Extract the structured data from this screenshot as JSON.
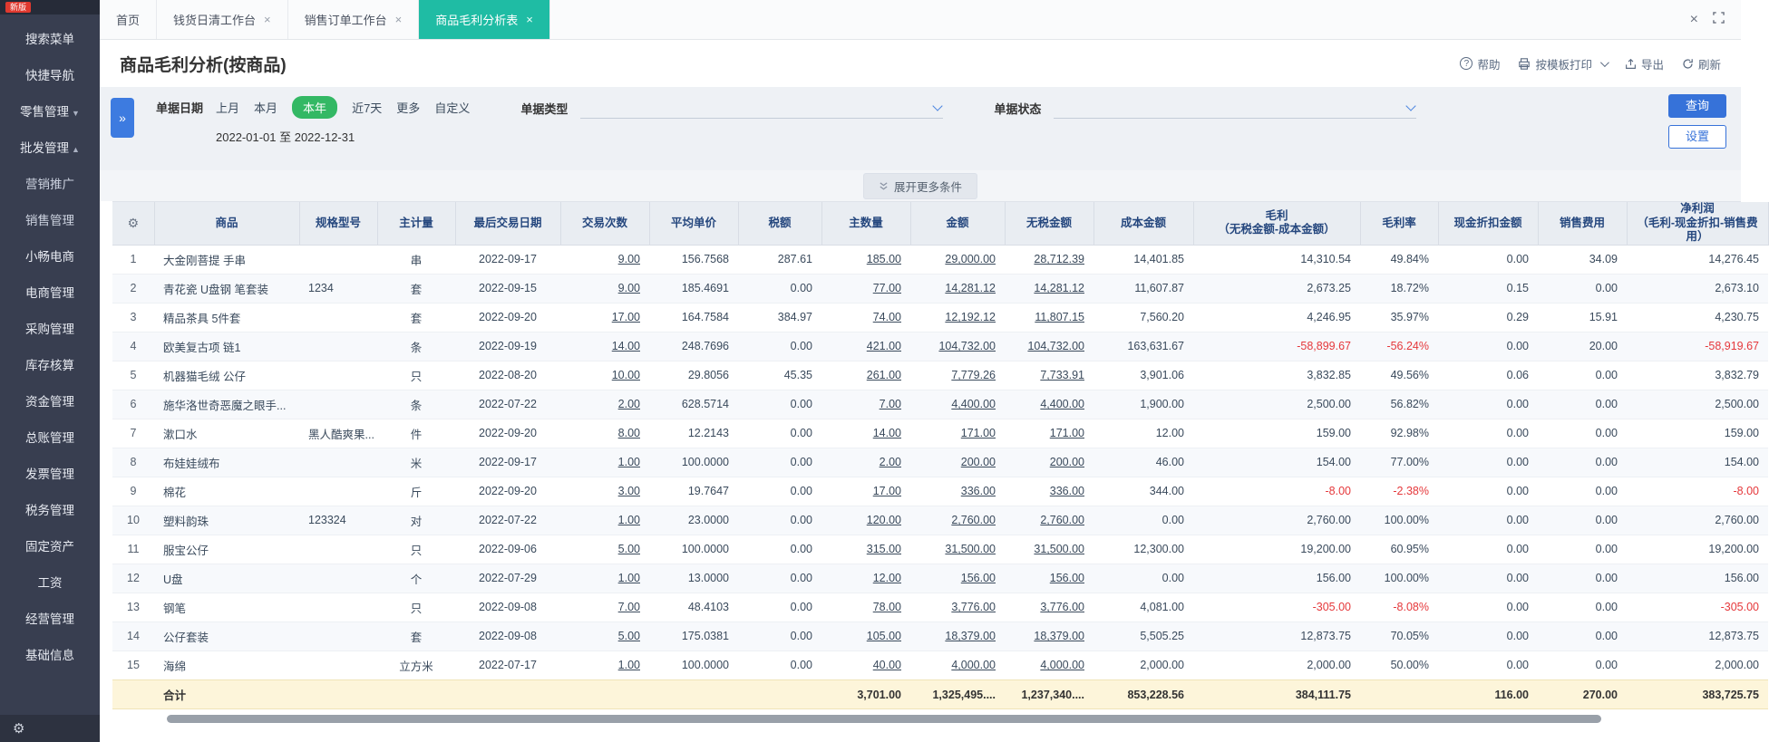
{
  "colors": {
    "sidebar_bg": "#383e50",
    "active_tab": "#1fbca4",
    "primary_blue": "#3672d9",
    "pill_green": "#33b864",
    "negative_red": "#e5383b",
    "total_row_bg": "#fdf5da"
  },
  "sidebar": {
    "logo_badge": "新版",
    "gear_icon": "⚙",
    "items": [
      {
        "label": "搜索菜单",
        "arrow": ""
      },
      {
        "label": "快捷导航",
        "arrow": ""
      },
      {
        "label": "零售管理",
        "arrow": "down"
      },
      {
        "label": "批发管理",
        "arrow": "up"
      },
      {
        "label": "营销推广",
        "arrow": "",
        "sub": true
      },
      {
        "label": "销售管理",
        "arrow": "",
        "sub": true
      },
      {
        "label": "小畅电商",
        "arrow": ""
      },
      {
        "label": "电商管理",
        "arrow": ""
      },
      {
        "label": "采购管理",
        "arrow": ""
      },
      {
        "label": "库存核算",
        "arrow": ""
      },
      {
        "label": "资金管理",
        "arrow": ""
      },
      {
        "label": "总账管理",
        "arrow": ""
      },
      {
        "label": "发票管理",
        "arrow": ""
      },
      {
        "label": "税务管理",
        "arrow": ""
      },
      {
        "label": "固定资产",
        "arrow": ""
      },
      {
        "label": "工资",
        "arrow": ""
      },
      {
        "label": "经营管理",
        "arrow": ""
      },
      {
        "label": "基础信息",
        "arrow": ""
      }
    ]
  },
  "tabs": [
    {
      "label": "首页",
      "closable": false,
      "active": false
    },
    {
      "label": "钱货日清工作台",
      "closable": true,
      "active": false
    },
    {
      "label": "销售订单工作台",
      "closable": true,
      "active": false
    },
    {
      "label": "商品毛利分析表",
      "closable": true,
      "active": true
    }
  ],
  "header": {
    "title": "商品毛利分析(按商品)",
    "actions": {
      "help": "帮助",
      "print": "按模板打印",
      "export": "导出",
      "refresh": "刷新"
    }
  },
  "filters": {
    "date_label": "单据日期",
    "date_options": [
      "上月",
      "本月",
      "本年",
      "近7天",
      "更多",
      "自定义"
    ],
    "date_active": "本年",
    "date_range": "2022-01-01 至 2022-12-31",
    "type_label": "单据类型",
    "status_label": "单据状态",
    "search_button": "查询",
    "settings_button": "设置",
    "expand_more": "展开更多条件"
  },
  "table": {
    "columns": [
      "商品",
      "规格型号",
      "主计量",
      "最后交易日期",
      "交易次数",
      "平均单价",
      "税额",
      "主数量",
      "金额",
      "无税金额",
      "成本金额",
      "毛利\n（无税金额-成本金额）",
      "毛利率",
      "现金折扣金额",
      "销售费用",
      "净利润\n（毛利-现金折扣-销售费用）"
    ],
    "rows": [
      [
        "大金刚菩提 手串",
        "",
        "串",
        "2022-09-17",
        "9.00",
        "156.7568",
        "287.61",
        "185.00",
        "29,000.00",
        "28,712.39",
        "14,401.85",
        "14,310.54",
        "49.84%",
        "0.00",
        "34.09",
        "14,276.45"
      ],
      [
        "青花瓷 U盘钢 笔套装",
        "1234",
        "套",
        "2022-09-15",
        "9.00",
        "185.4691",
        "0.00",
        "77.00",
        "14,281.12",
        "14,281.12",
        "11,607.87",
        "2,673.25",
        "18.72%",
        "0.15",
        "0.00",
        "2,673.10"
      ],
      [
        "精品茶具 5件套",
        "",
        "套",
        "2022-09-20",
        "17.00",
        "164.7584",
        "384.97",
        "74.00",
        "12,192.12",
        "11,807.15",
        "7,560.20",
        "4,246.95",
        "35.97%",
        "0.29",
        "15.91",
        "4,230.75"
      ],
      [
        "欧美复古项 链1",
        "",
        "条",
        "2022-09-19",
        "14.00",
        "248.7696",
        "0.00",
        "421.00",
        "104,732.00",
        "104,732.00",
        "163,631.67",
        "-58,899.67",
        "-56.24%",
        "0.00",
        "20.00",
        "-58,919.67"
      ],
      [
        "机器猫毛绒 公仔",
        "",
        "只",
        "2022-08-20",
        "10.00",
        "29.8056",
        "45.35",
        "261.00",
        "7,779.26",
        "7,733.91",
        "3,901.06",
        "3,832.85",
        "49.56%",
        "0.06",
        "0.00",
        "3,832.79"
      ],
      [
        "施华洛世奇恶魔之眼手...",
        "",
        "条",
        "2022-07-22",
        "2.00",
        "628.5714",
        "0.00",
        "7.00",
        "4,400.00",
        "4,400.00",
        "1,900.00",
        "2,500.00",
        "56.82%",
        "0.00",
        "0.00",
        "2,500.00"
      ],
      [
        "漱口水",
        "黑人酷爽果...",
        "件",
        "2022-09-20",
        "8.00",
        "12.2143",
        "0.00",
        "14.00",
        "171.00",
        "171.00",
        "12.00",
        "159.00",
        "92.98%",
        "0.00",
        "0.00",
        "159.00"
      ],
      [
        "布娃娃绒布",
        "",
        "米",
        "2022-09-17",
        "1.00",
        "100.0000",
        "0.00",
        "2.00",
        "200.00",
        "200.00",
        "46.00",
        "154.00",
        "77.00%",
        "0.00",
        "0.00",
        "154.00"
      ],
      [
        "棉花",
        "",
        "斤",
        "2022-09-20",
        "3.00",
        "19.7647",
        "0.00",
        "17.00",
        "336.00",
        "336.00",
        "344.00",
        "-8.00",
        "-2.38%",
        "0.00",
        "0.00",
        "-8.00"
      ],
      [
        "塑料韵珠",
        "123324",
        "对",
        "2022-07-22",
        "1.00",
        "23.0000",
        "0.00",
        "120.00",
        "2,760.00",
        "2,760.00",
        "0.00",
        "2,760.00",
        "100.00%",
        "0.00",
        "0.00",
        "2,760.00"
      ],
      [
        "服宝公仔",
        "",
        "只",
        "2022-09-06",
        "5.00",
        "100.0000",
        "0.00",
        "315.00",
        "31,500.00",
        "31,500.00",
        "12,300.00",
        "19,200.00",
        "60.95%",
        "0.00",
        "0.00",
        "19,200.00"
      ],
      [
        "U盘",
        "",
        "个",
        "2022-07-29",
        "1.00",
        "13.0000",
        "0.00",
        "12.00",
        "156.00",
        "156.00",
        "0.00",
        "156.00",
        "100.00%",
        "0.00",
        "0.00",
        "156.00"
      ],
      [
        "钢笔",
        "",
        "只",
        "2022-09-08",
        "7.00",
        "48.4103",
        "0.00",
        "78.00",
        "3,776.00",
        "3,776.00",
        "4,081.00",
        "-305.00",
        "-8.08%",
        "0.00",
        "0.00",
        "-305.00"
      ],
      [
        "公仔套装",
        "",
        "套",
        "2022-09-08",
        "5.00",
        "175.0381",
        "0.00",
        "105.00",
        "18,379.00",
        "18,379.00",
        "5,505.25",
        "12,873.75",
        "70.05%",
        "0.00",
        "0.00",
        "12,873.75"
      ],
      [
        "海绵",
        "",
        "立方米",
        "2022-07-17",
        "1.00",
        "100.0000",
        "0.00",
        "40.00",
        "4,000.00",
        "4,000.00",
        "2,000.00",
        "2,000.00",
        "50.00%",
        "0.00",
        "0.00",
        "2,000.00"
      ]
    ],
    "total": {
      "label": "合计",
      "cells": [
        "合计",
        "",
        "",
        "",
        "",
        "",
        "",
        "3,701.00",
        "1,325,495....",
        "1,237,340....",
        "853,228.56",
        "384,111.75",
        "",
        "116.00",
        "270.00",
        "383,725.75"
      ]
    }
  }
}
